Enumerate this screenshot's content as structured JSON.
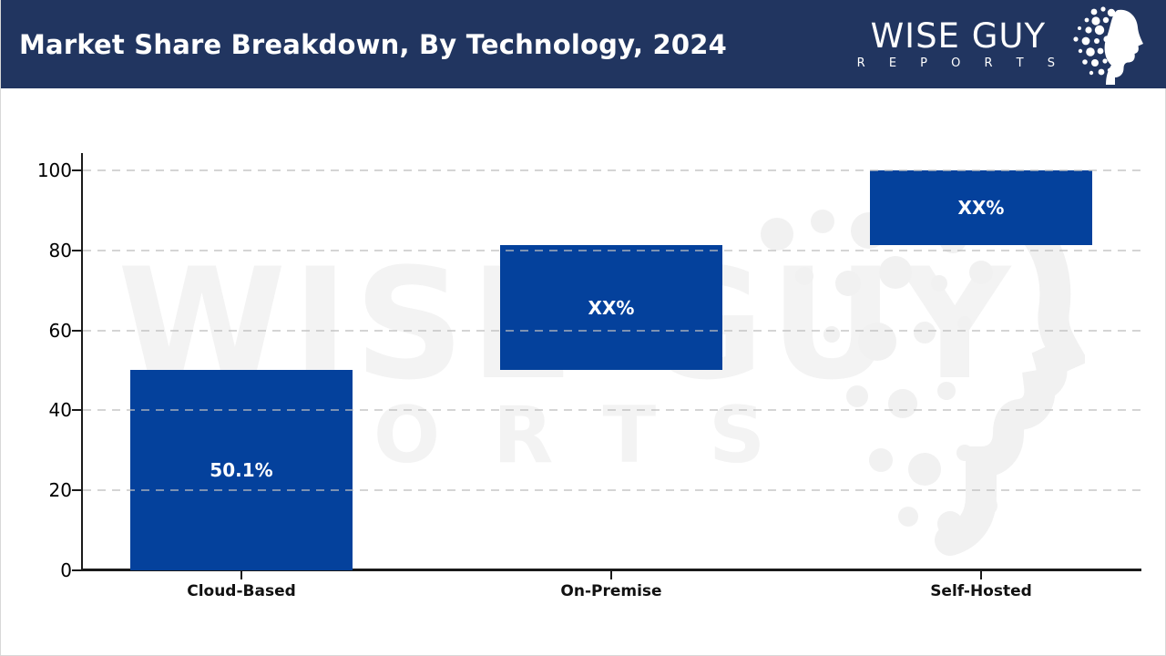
{
  "header": {
    "title": "Market Share Breakdown, By Technology, 2024",
    "bg_color": "#213560",
    "text_color": "#ffffff",
    "logo": {
      "line1": "WISE GUY",
      "line2": "R E P O R T S",
      "icon": "dotted-face-profile"
    }
  },
  "watermark": {
    "line1": "WISE GUY",
    "line2": "PORTS"
  },
  "chart_data": {
    "type": "bar",
    "variant": "floating-waterfall",
    "title": "Market Share Breakdown, By Technology, 2024",
    "categories": [
      "Cloud-Based",
      "On-Premise",
      "Self-Hosted"
    ],
    "series": [
      {
        "name": "Cloud-Based",
        "base": 0,
        "top": 50.1,
        "value": 50.1,
        "label": "50.1%"
      },
      {
        "name": "On-Premise",
        "base": 50.1,
        "top": 81.3,
        "value": 31.2,
        "label": "XX%"
      },
      {
        "name": "Self-Hosted",
        "base": 81.3,
        "top": 100,
        "value": 18.7,
        "label": "XX%"
      }
    ],
    "xlabel": "",
    "ylabel": "",
    "ylim": [
      0,
      100
    ],
    "yticks": [
      0,
      20,
      40,
      60,
      80,
      100
    ],
    "grid": "horizontal-dashed, drawn over bars",
    "legend": "none",
    "bar_color": "#04419c",
    "bar_label_color": "#ffffff",
    "axis_color": "#1a1a1a"
  }
}
